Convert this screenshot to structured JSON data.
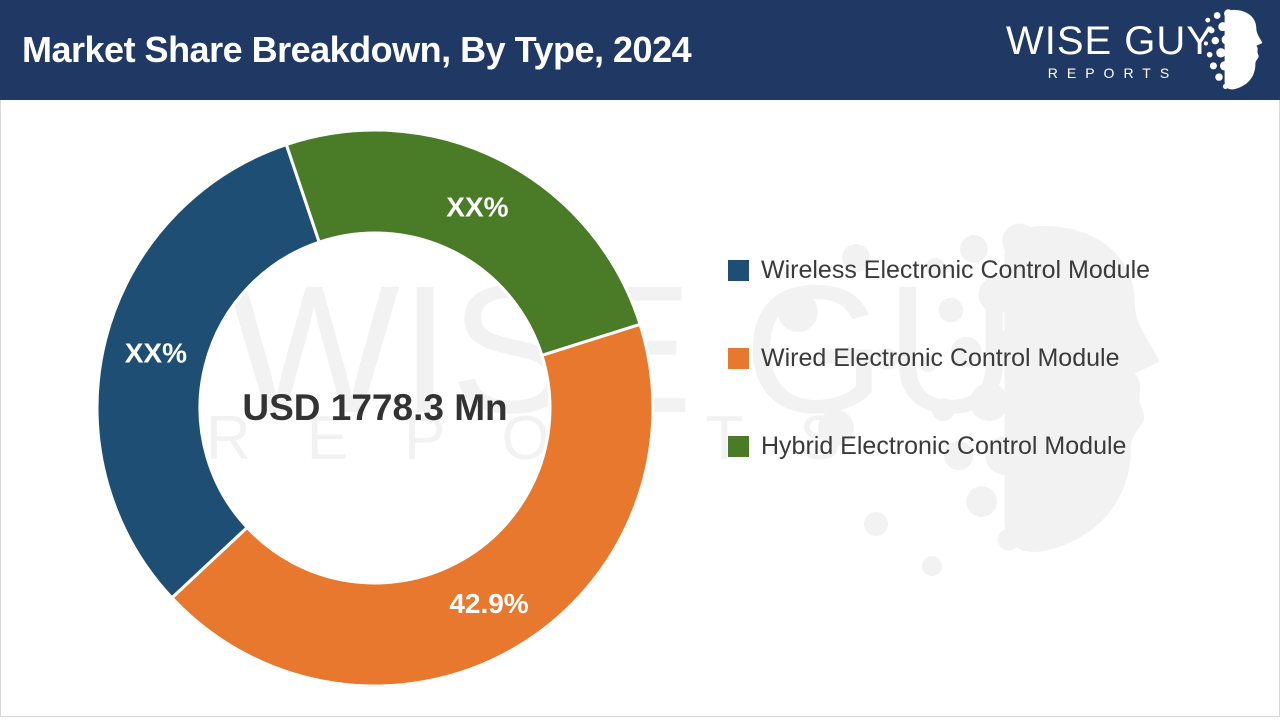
{
  "header": {
    "title": "Market Share Breakdown, By Type, 2024",
    "bg_color": "#1f3864",
    "logo": {
      "name": "WISE GUY",
      "sub": "REPORTS"
    }
  },
  "watermark": {
    "text_main": "WISE GUY",
    "text_sub": "REPORTS"
  },
  "chart_data": {
    "type": "pie",
    "subtype": "donut",
    "title": "Market Share Breakdown, By Type, 2024",
    "center_label": "USD 1778.3 Mn",
    "start_angle_deg": 108.6,
    "direction": "counterclockwise",
    "legend_position": "right",
    "segments": [
      {
        "name": "Wireless Electronic Control Module",
        "display_pct": "XX%",
        "value_pct": 31.8,
        "color": "#1f4e74"
      },
      {
        "name": "Wired Electronic Control Module",
        "display_pct": "42.9%",
        "value_pct": 42.9,
        "color": "#e8782d"
      },
      {
        "name": "Hybrid Electronic Control Module",
        "display_pct": "XX%",
        "value_pct": 25.3,
        "color": "#4a7c28"
      }
    ]
  }
}
